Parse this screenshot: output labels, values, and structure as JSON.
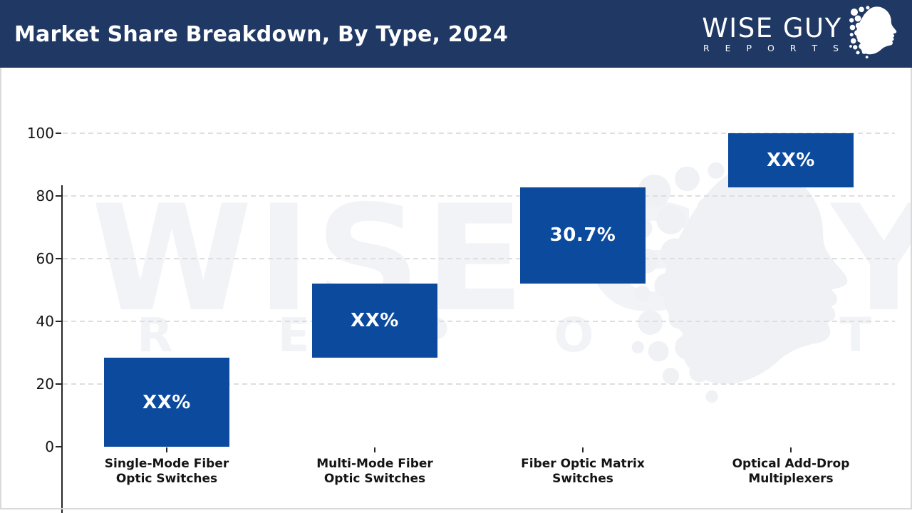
{
  "header": {
    "title": "Market Share Breakdown, By Type, 2024",
    "logo": {
      "line1": "WISE GUY",
      "line2": "R E P O R T S",
      "icon": "dotted-head-profile-icon"
    }
  },
  "watermark": {
    "line1": "WISE GUY",
    "line2": "R E P O R T S",
    "icon": "dotted-head-profile-icon"
  },
  "colors": {
    "header_bg": "#1f3864",
    "bar_blue": "#0c4a9e",
    "grid_gray": "#dedede",
    "axis_black": "#262626",
    "watermark_gray": "#f2f3f6",
    "frame_border_gray": "#d9d9d9",
    "title_text": "#ffffff",
    "bar_label_text": "#ffffff"
  },
  "chart_data": {
    "type": "bar",
    "subtype": "floating-waterfall",
    "title": "Market Share Breakdown, By Type, 2024",
    "xlabel": "",
    "ylabel": "",
    "ylim": [
      0,
      105
    ],
    "yticks": [
      0,
      20,
      40,
      60,
      80,
      100
    ],
    "grid": "horizontal-dashed",
    "legend": "none",
    "categories": [
      "Single-Mode Fiber Optic Switches",
      "Multi-Mode Fiber Optic Switches",
      "Fiber Optic Matrix Switches",
      "Optical Add-Drop Multiplexers"
    ],
    "category_lines": [
      [
        "Single-Mode Fiber",
        "Optic Switches"
      ],
      [
        "Multi-Mode Fiber",
        "Optic Switches"
      ],
      [
        "Fiber Optic Matrix",
        "Switches"
      ],
      [
        "Optical Add-Drop",
        "Multiplexers"
      ]
    ],
    "bars": [
      {
        "label": "XX%",
        "start": 0,
        "end": 28.4
      },
      {
        "label": "XX%",
        "start": 28.4,
        "end": 52.1
      },
      {
        "label": "30.7%",
        "start": 52.1,
        "end": 82.8
      },
      {
        "label": "XX%",
        "start": 82.8,
        "end": 100
      }
    ],
    "shown_value_note": "Only third segment value is revealed: 30.7%"
  }
}
